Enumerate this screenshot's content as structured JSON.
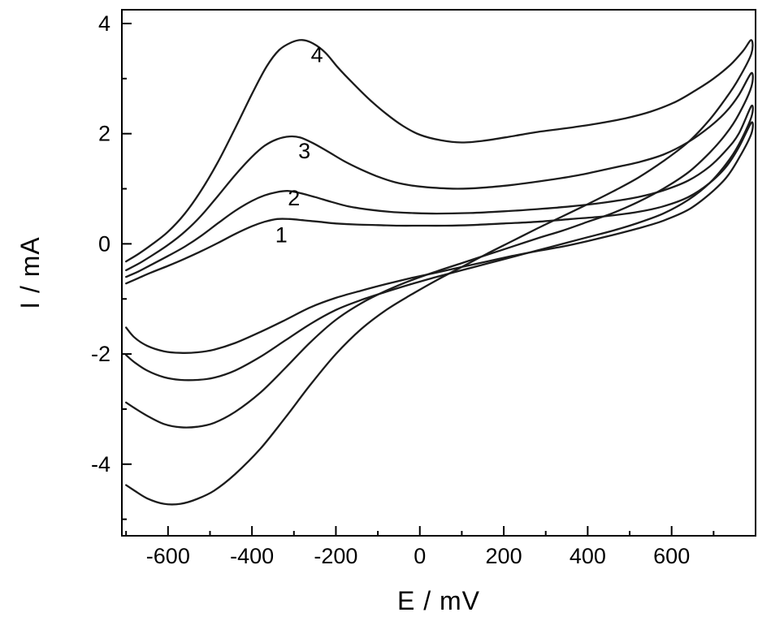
{
  "figure": {
    "background": "#ffffff",
    "curve_color": "#1c1c1c",
    "axis_color": "#000000",
    "text_color": "#000000"
  },
  "chart_data": {
    "type": "line",
    "title": "",
    "xlabel": "E / mV",
    "ylabel": "I / mA",
    "xlim": [
      -710,
      800
    ],
    "ylim": [
      -5.3,
      4.25
    ],
    "grid": false,
    "legend": "none",
    "x_ticks": [
      -600,
      -400,
      -200,
      0,
      200,
      400,
      600
    ],
    "x_minor_ticks": [
      -700,
      -500,
      -300,
      -100,
      100,
      300,
      500,
      700
    ],
    "y_ticks": [
      -4,
      -2,
      0,
      2,
      4
    ],
    "y_minor_ticks": [
      -5,
      -3,
      -1,
      1,
      3
    ],
    "curve_labels": [
      {
        "text": "1",
        "x": -330,
        "y": 0.03
      },
      {
        "text": "2",
        "x": -300,
        "y": 0.7
      },
      {
        "text": "3",
        "x": -275,
        "y": 1.55
      },
      {
        "text": "4",
        "x": -245,
        "y": 3.3
      }
    ],
    "series": [
      {
        "name": "curve-1",
        "anodic_peak": {
          "E": -330,
          "I": 0.45
        },
        "cathodic_peak": {
          "E": -560,
          "I": -1.98
        },
        "points": [
          [
            -700,
            -0.72
          ],
          [
            -670,
            -0.62
          ],
          [
            -640,
            -0.52
          ],
          [
            -600,
            -0.4
          ],
          [
            -560,
            -0.27
          ],
          [
            -520,
            -0.13
          ],
          [
            -480,
            0.02
          ],
          [
            -440,
            0.18
          ],
          [
            -400,
            0.32
          ],
          [
            -370,
            0.4
          ],
          [
            -340,
            0.45
          ],
          [
            -310,
            0.45
          ],
          [
            -280,
            0.43
          ],
          [
            -240,
            0.4
          ],
          [
            -200,
            0.37
          ],
          [
            -150,
            0.35
          ],
          [
            -100,
            0.34
          ],
          [
            -50,
            0.33
          ],
          [
            0,
            0.33
          ],
          [
            60,
            0.33
          ],
          [
            120,
            0.34
          ],
          [
            200,
            0.37
          ],
          [
            280,
            0.4
          ],
          [
            360,
            0.45
          ],
          [
            440,
            0.5
          ],
          [
            520,
            0.58
          ],
          [
            580,
            0.68
          ],
          [
            640,
            0.85
          ],
          [
            690,
            1.1
          ],
          [
            730,
            1.4
          ],
          [
            760,
            1.75
          ],
          [
            790,
            2.2
          ],
          [
            790,
            2.0
          ],
          [
            760,
            1.55
          ],
          [
            730,
            1.2
          ],
          [
            690,
            0.9
          ],
          [
            640,
            0.62
          ],
          [
            580,
            0.42
          ],
          [
            520,
            0.28
          ],
          [
            460,
            0.16
          ],
          [
            400,
            0.05
          ],
          [
            340,
            -0.05
          ],
          [
            280,
            -0.13
          ],
          [
            220,
            -0.22
          ],
          [
            160,
            -0.32
          ],
          [
            100,
            -0.42
          ],
          [
            40,
            -0.52
          ],
          [
            -20,
            -0.62
          ],
          [
            -80,
            -0.73
          ],
          [
            -140,
            -0.85
          ],
          [
            -200,
            -0.98
          ],
          [
            -260,
            -1.15
          ],
          [
            -320,
            -1.38
          ],
          [
            -380,
            -1.6
          ],
          [
            -440,
            -1.8
          ],
          [
            -490,
            -1.92
          ],
          [
            -530,
            -1.97
          ],
          [
            -570,
            -1.98
          ],
          [
            -610,
            -1.95
          ],
          [
            -650,
            -1.85
          ],
          [
            -680,
            -1.7
          ],
          [
            -700,
            -1.52
          ]
        ]
      },
      {
        "name": "curve-2",
        "anodic_peak": {
          "E": -315,
          "I": 0.96
        },
        "cathodic_peak": {
          "E": -550,
          "I": -2.47
        },
        "points": [
          [
            -700,
            -0.6
          ],
          [
            -670,
            -0.5
          ],
          [
            -640,
            -0.38
          ],
          [
            -600,
            -0.22
          ],
          [
            -560,
            -0.05
          ],
          [
            -520,
            0.15
          ],
          [
            -480,
            0.38
          ],
          [
            -440,
            0.6
          ],
          [
            -400,
            0.78
          ],
          [
            -370,
            0.88
          ],
          [
            -340,
            0.94
          ],
          [
            -315,
            0.96
          ],
          [
            -290,
            0.93
          ],
          [
            -250,
            0.85
          ],
          [
            -210,
            0.76
          ],
          [
            -170,
            0.68
          ],
          [
            -120,
            0.62
          ],
          [
            -70,
            0.58
          ],
          [
            -20,
            0.56
          ],
          [
            40,
            0.55
          ],
          [
            120,
            0.56
          ],
          [
            200,
            0.59
          ],
          [
            280,
            0.63
          ],
          [
            360,
            0.68
          ],
          [
            440,
            0.75
          ],
          [
            520,
            0.85
          ],
          [
            580,
            0.97
          ],
          [
            640,
            1.15
          ],
          [
            690,
            1.4
          ],
          [
            730,
            1.7
          ],
          [
            760,
            2.0
          ],
          [
            790,
            2.5
          ],
          [
            790,
            2.3
          ],
          [
            760,
            1.8
          ],
          [
            730,
            1.45
          ],
          [
            690,
            1.1
          ],
          [
            640,
            0.8
          ],
          [
            580,
            0.55
          ],
          [
            520,
            0.38
          ],
          [
            460,
            0.24
          ],
          [
            400,
            0.12
          ],
          [
            340,
            0.0
          ],
          [
            280,
            -0.12
          ],
          [
            220,
            -0.24
          ],
          [
            160,
            -0.36
          ],
          [
            100,
            -0.48
          ],
          [
            40,
            -0.6
          ],
          [
            -20,
            -0.73
          ],
          [
            -80,
            -0.87
          ],
          [
            -140,
            -1.02
          ],
          [
            -200,
            -1.2
          ],
          [
            -260,
            -1.45
          ],
          [
            -320,
            -1.75
          ],
          [
            -380,
            -2.05
          ],
          [
            -440,
            -2.3
          ],
          [
            -490,
            -2.43
          ],
          [
            -530,
            -2.47
          ],
          [
            -570,
            -2.47
          ],
          [
            -610,
            -2.42
          ],
          [
            -650,
            -2.3
          ],
          [
            -680,
            -2.15
          ],
          [
            -700,
            -2.02
          ]
        ]
      },
      {
        "name": "curve-3",
        "anodic_peak": {
          "E": -310,
          "I": 1.95
        },
        "cathodic_peak": {
          "E": -560,
          "I": -3.33
        },
        "points": [
          [
            -700,
            -0.48
          ],
          [
            -670,
            -0.36
          ],
          [
            -640,
            -0.22
          ],
          [
            -600,
            -0.02
          ],
          [
            -560,
            0.22
          ],
          [
            -520,
            0.52
          ],
          [
            -480,
            0.88
          ],
          [
            -440,
            1.25
          ],
          [
            -400,
            1.58
          ],
          [
            -370,
            1.78
          ],
          [
            -340,
            1.9
          ],
          [
            -310,
            1.95
          ],
          [
            -285,
            1.93
          ],
          [
            -255,
            1.83
          ],
          [
            -220,
            1.68
          ],
          [
            -180,
            1.5
          ],
          [
            -140,
            1.35
          ],
          [
            -100,
            1.22
          ],
          [
            -60,
            1.12
          ],
          [
            -20,
            1.06
          ],
          [
            30,
            1.02
          ],
          [
            90,
            1.0
          ],
          [
            150,
            1.02
          ],
          [
            220,
            1.07
          ],
          [
            300,
            1.15
          ],
          [
            380,
            1.25
          ],
          [
            460,
            1.38
          ],
          [
            520,
            1.48
          ],
          [
            580,
            1.62
          ],
          [
            640,
            1.85
          ],
          [
            690,
            2.12
          ],
          [
            730,
            2.4
          ],
          [
            760,
            2.7
          ],
          [
            790,
            3.1
          ],
          [
            790,
            2.85
          ],
          [
            760,
            2.35
          ],
          [
            730,
            2.0
          ],
          [
            690,
            1.65
          ],
          [
            640,
            1.3
          ],
          [
            580,
            1.0
          ],
          [
            520,
            0.76
          ],
          [
            460,
            0.56
          ],
          [
            400,
            0.4
          ],
          [
            340,
            0.24
          ],
          [
            280,
            0.1
          ],
          [
            220,
            -0.05
          ],
          [
            160,
            -0.2
          ],
          [
            100,
            -0.35
          ],
          [
            40,
            -0.5
          ],
          [
            -20,
            -0.66
          ],
          [
            -80,
            -0.85
          ],
          [
            -140,
            -1.08
          ],
          [
            -200,
            -1.38
          ],
          [
            -260,
            -1.78
          ],
          [
            -320,
            -2.25
          ],
          [
            -380,
            -2.7
          ],
          [
            -440,
            -3.05
          ],
          [
            -490,
            -3.25
          ],
          [
            -530,
            -3.32
          ],
          [
            -570,
            -3.33
          ],
          [
            -610,
            -3.27
          ],
          [
            -650,
            -3.12
          ],
          [
            -680,
            -2.98
          ],
          [
            -700,
            -2.88
          ]
        ]
      },
      {
        "name": "curve-4",
        "anodic_peak": {
          "E": -280,
          "I": 3.7
        },
        "cathodic_peak": {
          "E": -590,
          "I": -4.72
        },
        "points": [
          [
            -700,
            -0.32
          ],
          [
            -670,
            -0.18
          ],
          [
            -640,
            -0.02
          ],
          [
            -600,
            0.22
          ],
          [
            -560,
            0.55
          ],
          [
            -520,
            0.98
          ],
          [
            -480,
            1.5
          ],
          [
            -440,
            2.1
          ],
          [
            -400,
            2.72
          ],
          [
            -365,
            3.22
          ],
          [
            -335,
            3.52
          ],
          [
            -305,
            3.66
          ],
          [
            -280,
            3.7
          ],
          [
            -255,
            3.64
          ],
          [
            -225,
            3.47
          ],
          [
            -195,
            3.2
          ],
          [
            -160,
            2.92
          ],
          [
            -120,
            2.62
          ],
          [
            -80,
            2.36
          ],
          [
            -40,
            2.14
          ],
          [
            0,
            1.98
          ],
          [
            50,
            1.88
          ],
          [
            100,
            1.84
          ],
          [
            150,
            1.87
          ],
          [
            210,
            1.94
          ],
          [
            280,
            2.03
          ],
          [
            350,
            2.1
          ],
          [
            420,
            2.18
          ],
          [
            490,
            2.28
          ],
          [
            550,
            2.4
          ],
          [
            610,
            2.58
          ],
          [
            660,
            2.8
          ],
          [
            700,
            3.0
          ],
          [
            740,
            3.25
          ],
          [
            770,
            3.5
          ],
          [
            790,
            3.7
          ],
          [
            790,
            3.45
          ],
          [
            760,
            3.0
          ],
          [
            730,
            2.65
          ],
          [
            690,
            2.25
          ],
          [
            640,
            1.85
          ],
          [
            580,
            1.5
          ],
          [
            520,
            1.2
          ],
          [
            460,
            0.95
          ],
          [
            400,
            0.72
          ],
          [
            340,
            0.5
          ],
          [
            280,
            0.28
          ],
          [
            220,
            0.05
          ],
          [
            160,
            -0.18
          ],
          [
            100,
            -0.42
          ],
          [
            40,
            -0.66
          ],
          [
            -20,
            -0.92
          ],
          [
            -80,
            -1.2
          ],
          [
            -140,
            -1.55
          ],
          [
            -200,
            -2.0
          ],
          [
            -260,
            -2.55
          ],
          [
            -320,
            -3.15
          ],
          [
            -380,
            -3.72
          ],
          [
            -440,
            -4.18
          ],
          [
            -490,
            -4.48
          ],
          [
            -530,
            -4.63
          ],
          [
            -570,
            -4.72
          ],
          [
            -610,
            -4.72
          ],
          [
            -650,
            -4.62
          ],
          [
            -680,
            -4.48
          ],
          [
            -700,
            -4.38
          ]
        ]
      }
    ]
  }
}
